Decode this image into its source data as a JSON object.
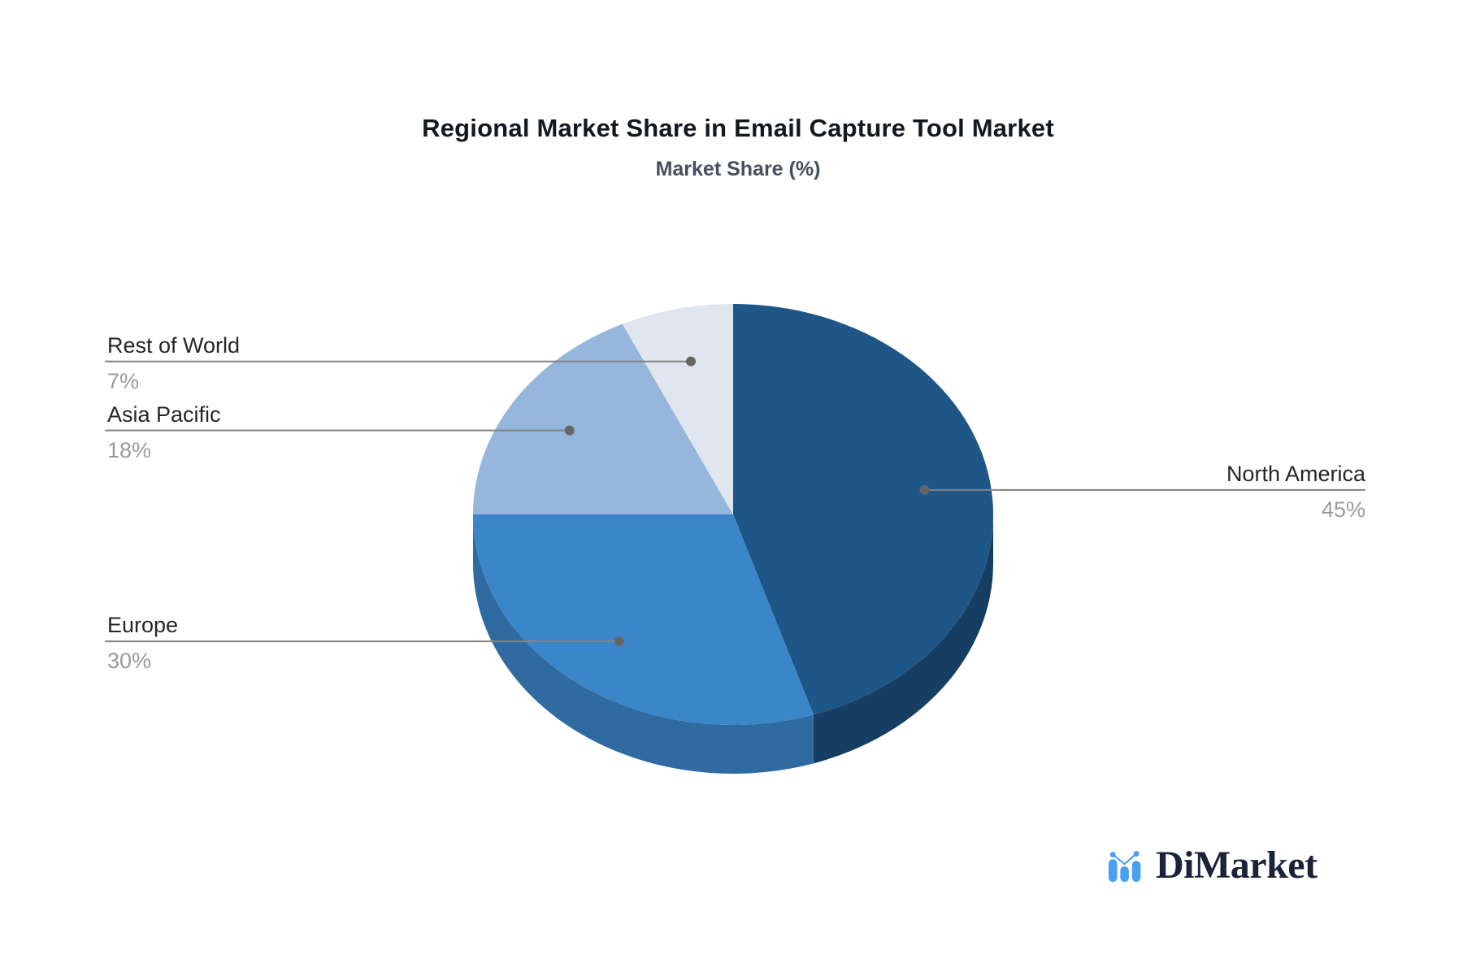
{
  "header": {
    "title": "Regional Market Share in Email Capture Tool Market",
    "subtitle": "Market Share (%)"
  },
  "chart_data": {
    "type": "pie",
    "style": "3d",
    "title": "Regional Market Share in Email Capture Tool Market",
    "subtitle": "Market Share (%)",
    "unit": "%",
    "start_angle_deg": 0,
    "direction": "clockwise",
    "legend_position": "callout-labels",
    "slices": [
      {
        "label": "North America",
        "value": 45,
        "pct_label": "45%",
        "color": "#1E5687",
        "side_color": "#163E63",
        "callout_side": "right"
      },
      {
        "label": "Europe",
        "value": 30,
        "pct_label": "30%",
        "color": "#3B86C9",
        "side_color": "#2F6BA1",
        "callout_side": "left"
      },
      {
        "label": "Asia Pacific",
        "value": 18,
        "pct_label": "18%",
        "color": "#96B7DB",
        "side_color": "#7E9DC0",
        "callout_side": "left"
      },
      {
        "label": "Rest of World",
        "value": 7,
        "pct_label": "7%",
        "color": "#E0E6F0",
        "side_color": "#C3CBD9",
        "callout_side": "left"
      }
    ],
    "leader_line_color": "#828282",
    "leader_dot_color": "#666666"
  },
  "branding": {
    "logo_text": "DiMarket",
    "logo_accent_color": "#49A0F2"
  }
}
